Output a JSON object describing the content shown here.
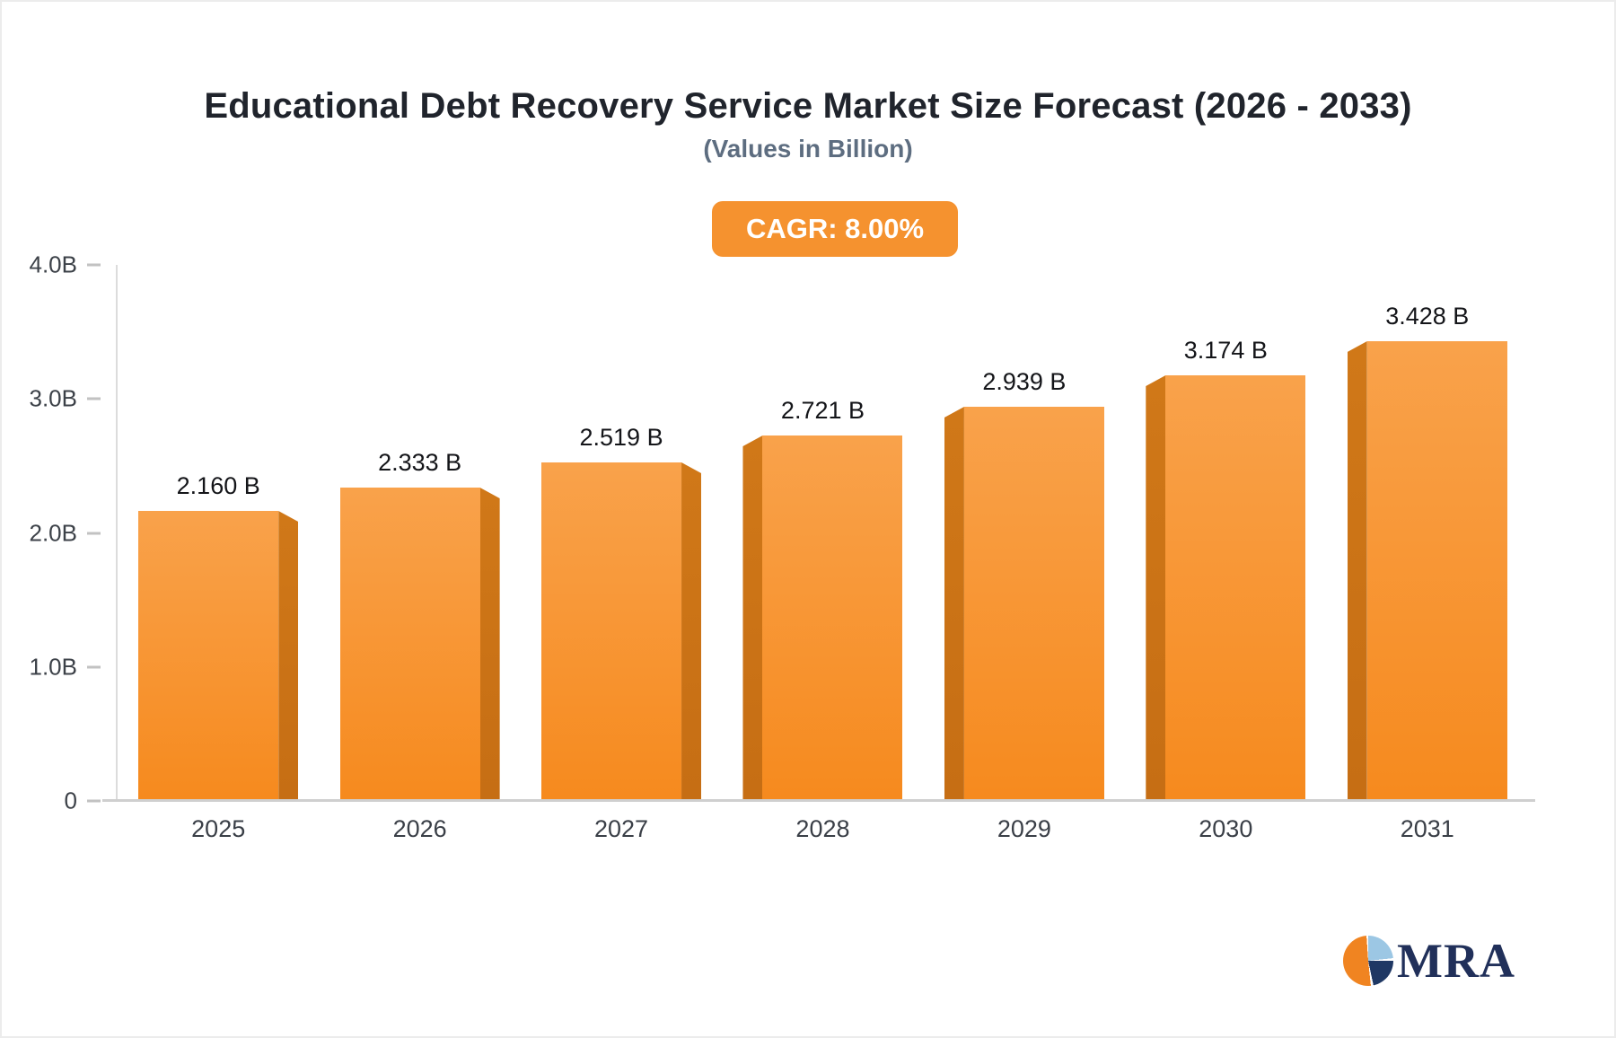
{
  "chart_data": {
    "type": "bar",
    "title": "Educational Debt Recovery Service Market Size Forecast (2026 - 2033)",
    "subtitle": "(Values in Billion)",
    "cagr_label": "CAGR: 8.00%",
    "categories": [
      "2025",
      "2026",
      "2027",
      "2028",
      "2029",
      "2030",
      "2031"
    ],
    "values": [
      2.16,
      2.333,
      2.519,
      2.721,
      2.939,
      3.174,
      3.428
    ],
    "value_labels": [
      "2.160 B",
      "2.333 B",
      "2.519 B",
      "2.721 B",
      "2.939 B",
      "3.174 B",
      "3.428 B"
    ],
    "sides": [
      "right",
      "right",
      "right",
      "left",
      "left",
      "left",
      "left"
    ],
    "ylim": [
      0,
      4.0
    ],
    "ytick_labels": [
      "4.0B",
      "3.0B",
      "2.0B",
      "1.0B",
      "0"
    ],
    "xlabel": "",
    "ylabel": "",
    "grid": false,
    "legend": "none",
    "colors": {
      "accent": "#f5922f",
      "bar_face_top": "#f9a24b",
      "bar_face_bottom": "#f68a1e",
      "bar_side": "#c96f15",
      "title_text": "#20242c",
      "subtitle_text": "#5d6d80",
      "axis_text": "#3c4148",
      "logo_navy": "#21305a",
      "logo_blue": "#9cc7e4",
      "logo_orange": "#f08421"
    }
  },
  "logo": {
    "text": "MRA"
  }
}
